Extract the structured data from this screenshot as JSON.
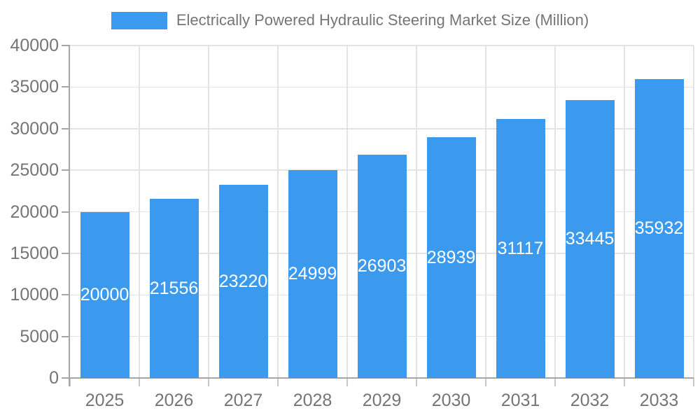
{
  "legend": {
    "label": "Electrically Powered Hydraulic Steering Market Size (Million)"
  },
  "chart_data": {
    "type": "bar",
    "title": "Electrically Powered Hydraulic Steering Market Size (Million)",
    "categories": [
      "2025",
      "2026",
      "2027",
      "2028",
      "2029",
      "2030",
      "2031",
      "2032",
      "2033"
    ],
    "values": [
      20000,
      21556,
      23220,
      24999,
      26903,
      28939,
      31117,
      33445,
      35932
    ],
    "series": [
      {
        "name": "Electrically Powered Hydraulic Steering Market Size (Million)",
        "values": [
          20000,
          21556,
          23220,
          24999,
          26903,
          28939,
          31117,
          33445,
          35932
        ]
      }
    ],
    "xlabel": "",
    "ylabel": "",
    "ylim": [
      0,
      40000
    ],
    "yticks": [
      0,
      5000,
      10000,
      15000,
      20000,
      25000,
      30000,
      35000,
      40000
    ],
    "grid": true,
    "legend_position": "top",
    "value_label_position": "inside-center"
  },
  "colors": {
    "bar": "#3B99EE",
    "value_label": "#FFFFFF",
    "axis_text": "#757575",
    "legend_text": "#757575",
    "grid_line": "#E3E3E3",
    "axis_line": "#A6A6A6",
    "tick": "#C9C9C9",
    "background": "#FFFFFF"
  }
}
